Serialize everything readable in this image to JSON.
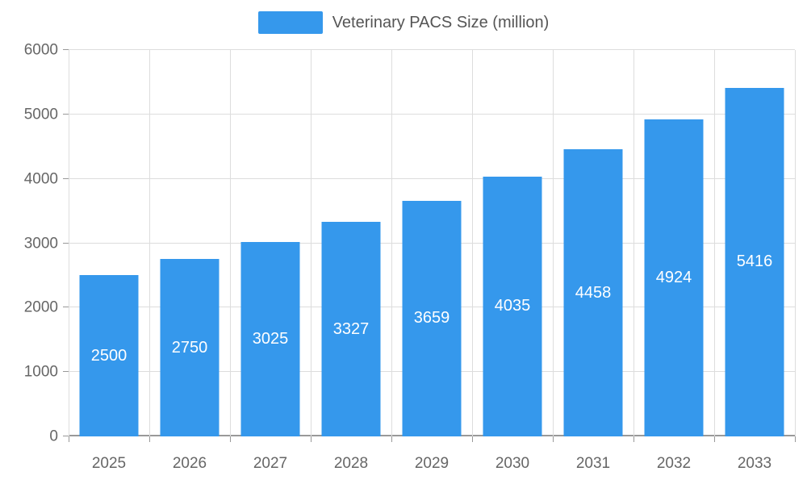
{
  "chart_data": {
    "type": "bar",
    "title": "",
    "legend": "Veterinary PACS Size (million)",
    "categories": [
      "2025",
      "2026",
      "2027",
      "2028",
      "2029",
      "2030",
      "2031",
      "2032",
      "2033"
    ],
    "values": [
      2500,
      2750,
      3025,
      3327,
      3659,
      4035,
      4458,
      4924,
      5416
    ],
    "xlabel": "",
    "ylabel": "",
    "ylim": [
      0,
      6000
    ],
    "ytick_step": 1000,
    "ytick_labels": [
      "0",
      "1000",
      "2000",
      "3000",
      "4000",
      "5000",
      "6000"
    ],
    "grid": true,
    "legend_position": "top-center",
    "bar_color": "#3598EC",
    "bar_label_color": "#ffffff",
    "axis_text_color": "#666666",
    "legend_text_color": "#555555"
  }
}
